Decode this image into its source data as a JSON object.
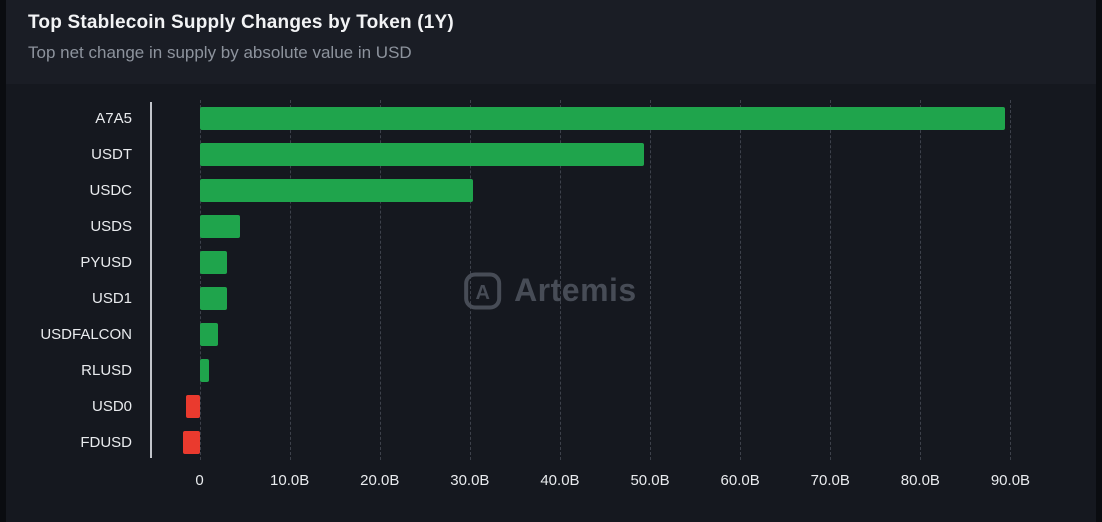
{
  "header": {
    "title": "Top Stablecoin Supply Changes by Token (1Y)",
    "subtitle": "Top net change in supply by absolute value in USD"
  },
  "watermark": {
    "label": "Artemis"
  },
  "chart_data": {
    "type": "bar",
    "orientation": "horizontal",
    "title": "Top Stablecoin Supply Changes by Token (1Y)",
    "subtitle": "Top net change in supply by absolute value in USD",
    "categories": [
      "A7A5",
      "USDT",
      "USDC",
      "USDS",
      "PYUSD",
      "USD1",
      "USDFALCON",
      "RLUSD",
      "USD0",
      "FDUSD"
    ],
    "values": [
      89.4,
      49.3,
      30.4,
      4.5,
      3.0,
      3.1,
      2.0,
      1.1,
      -1.5,
      -1.8
    ],
    "unit": "B USD",
    "xticks": [
      0,
      10,
      20,
      30,
      40,
      50,
      60,
      70,
      80,
      90
    ],
    "xtick_labels": [
      "0",
      "10.0B",
      "20.0B",
      "30.0B",
      "40.0B",
      "50.0B",
      "60.0B",
      "70.0B",
      "80.0B",
      "90.0B"
    ],
    "xlim": [
      -5.5,
      95.5
    ],
    "grid": "dashed-vertical",
    "legend": "none",
    "positive_color": "#1fa44c",
    "negative_color": "#ea3a2e"
  }
}
